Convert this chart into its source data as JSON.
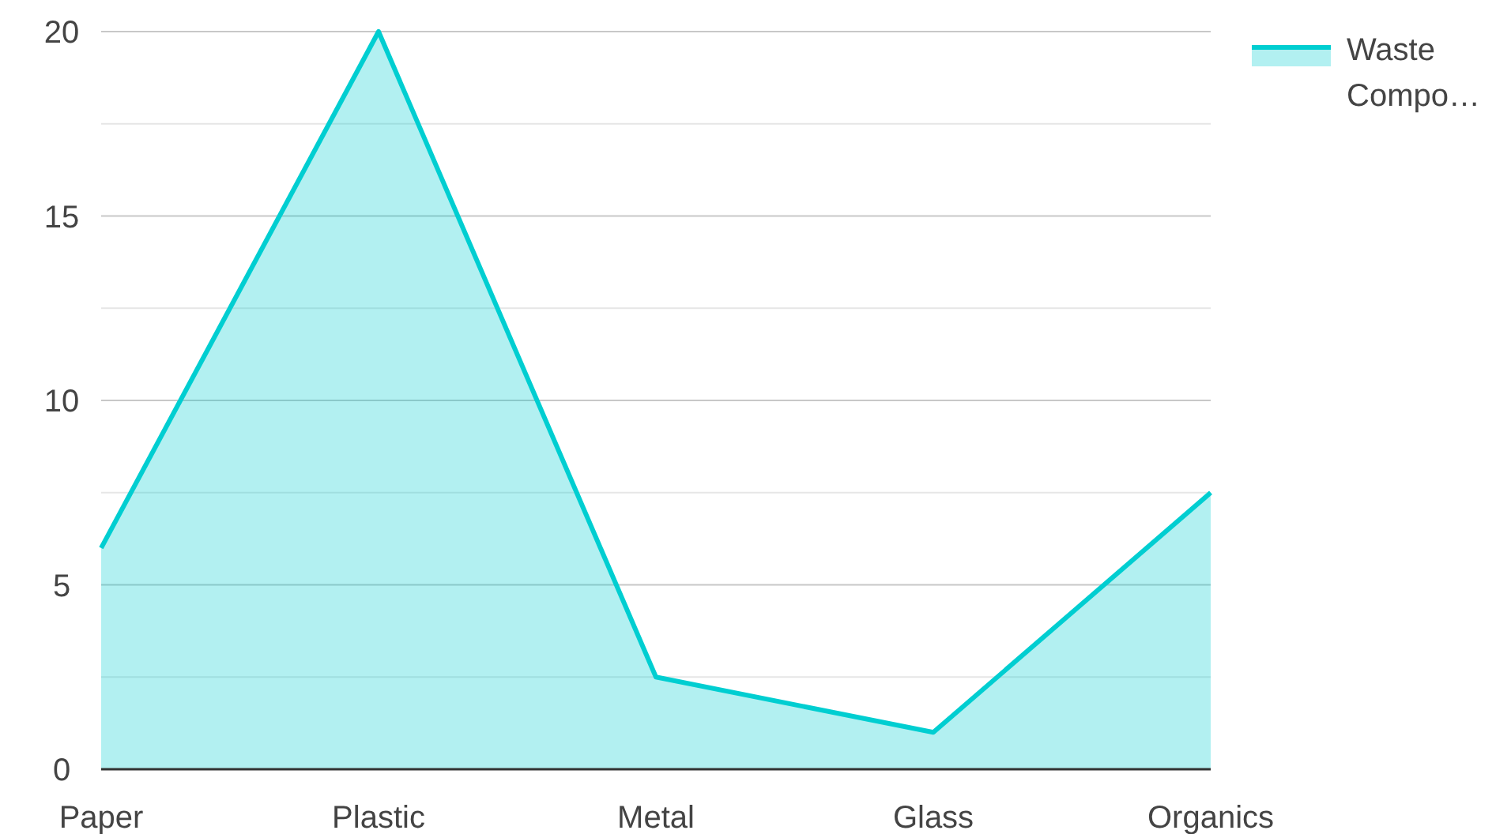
{
  "chart_data": {
    "type": "area",
    "categories": [
      "Paper",
      "Plastic",
      "Metal",
      "Glass",
      "Organics"
    ],
    "series": [
      {
        "name": "Waste Compo…",
        "color": "#00ced1",
        "values": [
          6,
          20,
          2.5,
          1,
          7.5
        ]
      }
    ],
    "ylim": [
      0,
      20
    ],
    "yticks": [
      0,
      {
        "value": 2.5,
        "label": null
      },
      5,
      {
        "value": 7.5,
        "label": null
      },
      10,
      {
        "value": 12.5,
        "label": null
      },
      15,
      {
        "value": 17.5,
        "label": null
      },
      20
    ],
    "grid": "y",
    "legend": "top right"
  }
}
